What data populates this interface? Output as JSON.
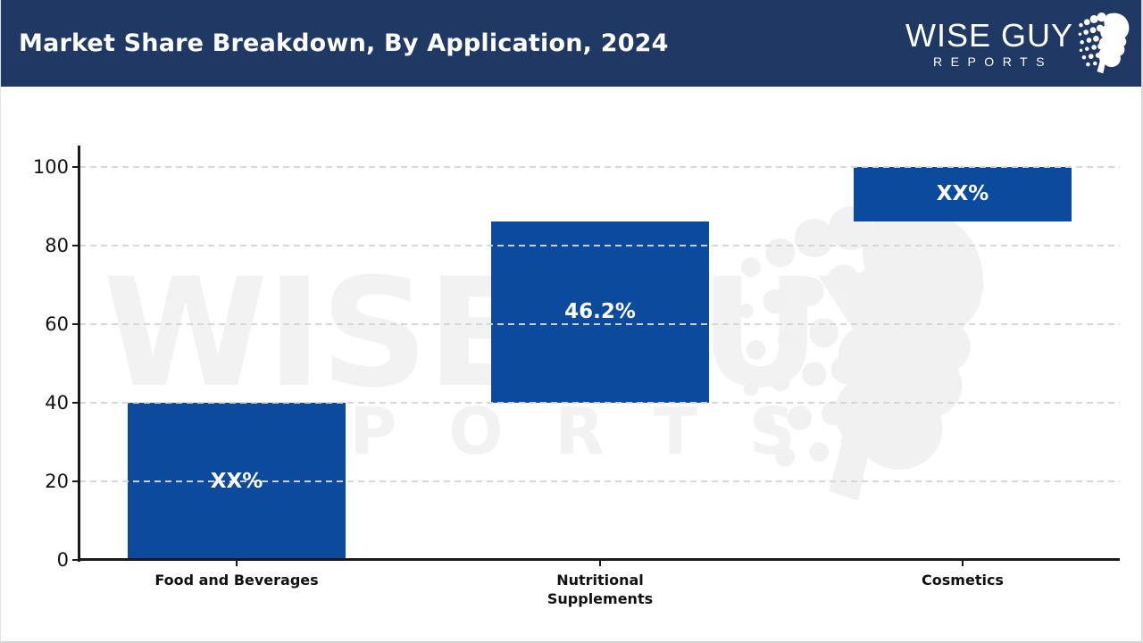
{
  "header": {
    "title": "Market Share Breakdown, By Application, 2024",
    "logo": {
      "wordmark": "WISE GUY",
      "subtext": "REPORTS"
    }
  },
  "watermark": {
    "line1": "WISE GUY",
    "line2": "REPORTS"
  },
  "chart_data": {
    "type": "bar",
    "subtype": "floating-segment-waterfall",
    "title": "Market Share Breakdown, By Application, 2024",
    "categories": [
      "Food and Beverages",
      "Nutritional\nSupplements",
      "Cosmetics"
    ],
    "bars": [
      {
        "category": "Food and Beverages",
        "label": "XX%",
        "start": 0,
        "end": 40
      },
      {
        "category": "Nutritional Supplements",
        "label": "46.2%",
        "start": 40,
        "end": 86.2
      },
      {
        "category": "Cosmetics",
        "label": "XX%",
        "start": 86.2,
        "end": 100
      }
    ],
    "y_ticks": [
      0,
      20,
      40,
      60,
      80,
      100
    ],
    "ylim": [
      0,
      105
    ],
    "xlabel": "",
    "ylabel": "",
    "grid": {
      "axis": "y",
      "style": "dashed",
      "color": "#d9d9d9",
      "drawn_over_bars": true
    },
    "legend": "none",
    "bar_color": "#0c4a9e",
    "bar_label_color": "#ffffff",
    "axis_color": "#1a1a1a",
    "header_bg_color": "#1f3864",
    "background_color": "#ffffff",
    "watermark_color": "#f2f2f2"
  }
}
